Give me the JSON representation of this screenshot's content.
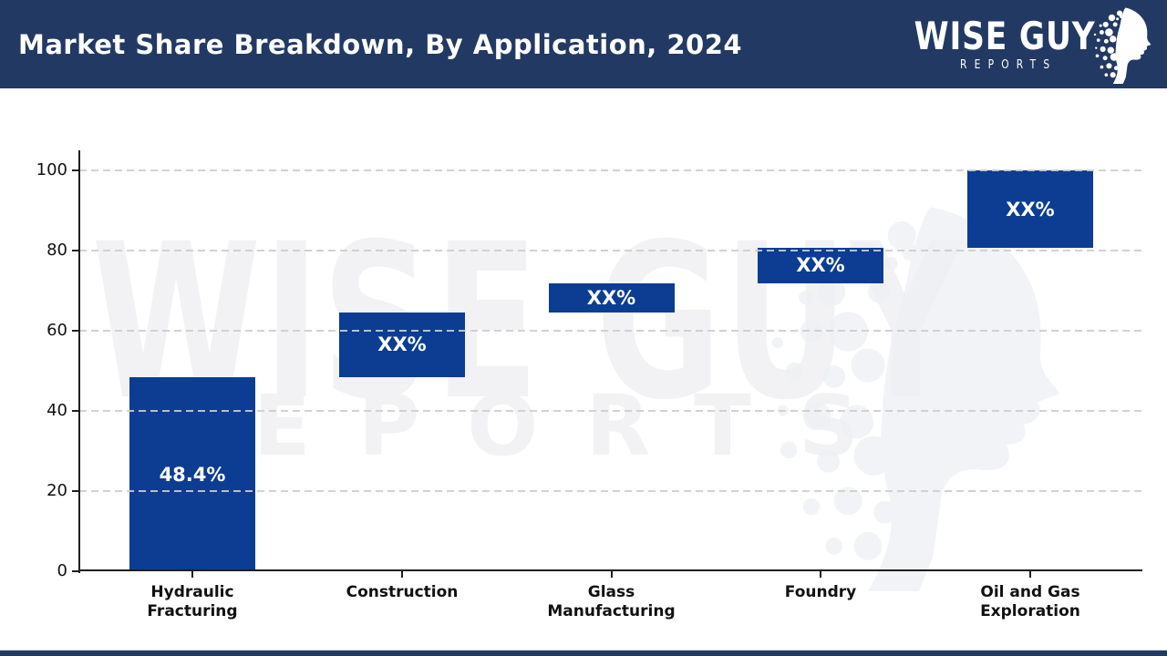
{
  "header": {
    "title": "Market Share Breakdown, By Application, 2024",
    "brand": {
      "line1": "WISE GUY",
      "line2": "REPORTS"
    }
  },
  "watermark": {
    "line1": "WISE GUY",
    "line2": "REPORTS"
  },
  "chart_data": {
    "type": "bar",
    "subtype": "waterfall",
    "title": "Market Share Breakdown, By Application, 2024",
    "categories": [
      "Hydraulic Fracturing",
      "Construction",
      "Glass Manufacturing",
      "Foundry",
      "Oil and Gas Exploration"
    ],
    "category_lines": [
      [
        "Hydraulic",
        "Fracturing"
      ],
      [
        "Construction"
      ],
      [
        "Glass",
        "Manufacturing"
      ],
      [
        "Foundry"
      ],
      [
        "Oil and Gas",
        "Exploration"
      ]
    ],
    "segments": [
      {
        "category": "Hydraulic Fracturing",
        "start": 0,
        "end": 48.4,
        "label": "48.4%"
      },
      {
        "category": "Construction",
        "start": 48.4,
        "end": 64.6,
        "label": "XX%"
      },
      {
        "category": "Glass Manufacturing",
        "start": 64.6,
        "end": 71.9,
        "label": "XX%"
      },
      {
        "category": "Foundry",
        "start": 71.9,
        "end": 80.6,
        "label": "XX%"
      },
      {
        "category": "Oil and Gas Exploration",
        "start": 80.6,
        "end": 100,
        "label": "XX%"
      }
    ],
    "xlabel": "",
    "ylabel": "",
    "ylim": [
      0,
      100
    ],
    "yticks": [
      0,
      20,
      40,
      60,
      80,
      100
    ],
    "grid": "horizontal dashed",
    "legend": "none",
    "bar_color": "#0c3d92",
    "bar_label_color": "#ffffff",
    "header_color": "#223963"
  }
}
